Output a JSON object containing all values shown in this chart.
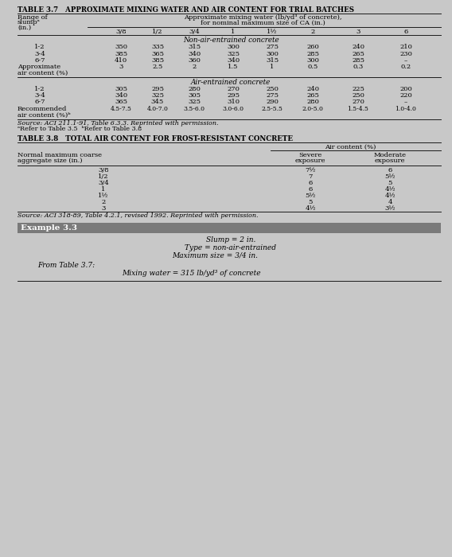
{
  "bg_color": "#c8c8c8",
  "table37_title": "TABLE 3.7   APPROXIMATE MIXING WATER AND AIR CONTENT FOR TRIAL BATCHES",
  "table37_header1": "Approximate mixing water (lb/yd³ of concrete),",
  "table37_header2": "for nominal maximum size of CA (in.)",
  "table37_col_left_lines": [
    "Range of",
    "slumpᵃ",
    "(in.)"
  ],
  "table37_col_headers": [
    "3/8",
    "1/2",
    "3/4",
    "1",
    "1½",
    "2",
    "3",
    "6"
  ],
  "table37_section1": "Non-air-entrained concrete",
  "non_air_rows": [
    [
      "1-2",
      "350",
      "335",
      "315",
      "300",
      "275",
      "260",
      "240",
      "210"
    ],
    [
      "3-4",
      "385",
      "365",
      "340",
      "325",
      "300",
      "285",
      "265",
      "230"
    ],
    [
      "6-7",
      "410",
      "385",
      "360",
      "340",
      "315",
      "300",
      "285",
      "–"
    ],
    [
      "Approximate\nair content (%)",
      "3",
      "2.5",
      "2",
      "1.5",
      "1",
      "0.5",
      "0.3",
      "0.2"
    ]
  ],
  "table37_section2": "Air-entrained concrete",
  "air_rows": [
    [
      "1-2",
      "305",
      "295",
      "280",
      "270",
      "250",
      "240",
      "225",
      "200"
    ],
    [
      "3-4",
      "340",
      "325",
      "305",
      "295",
      "275",
      "265",
      "250",
      "220"
    ],
    [
      "6-7",
      "365",
      "345",
      "325",
      "310",
      "290",
      "280",
      "270",
      "–"
    ],
    [
      "Recommended\nair content (%)ᵇ",
      "4.5-7.5",
      "4.0-7.0",
      "3.5-6.0",
      "3.0-6.0",
      "2.5-5.5",
      "2.0-5.0",
      "1.5-4.5",
      "1.0-4.0"
    ]
  ],
  "source37": "Source: ACI 211.1-91, Table 6.3.3. Reprinted with permission.",
  "footnote37a": "ᵃRefer to Table 3.5",
  "footnote37b": "  ᵇRefer to Table 3.8",
  "table38_title": "TABLE 3.8   TOTAL AIR CONTENT FOR FROST-RESISTANT CONCRETE",
  "table38_col_left": [
    "Normal maximum coarse",
    "aggregate size (in.)"
  ],
  "table38_header_center": "Air content (%)",
  "table38_col2": [
    "Severe",
    "exposure"
  ],
  "table38_col3": [
    "Moderate",
    "exposure"
  ],
  "table38_rows": [
    [
      "3/8",
      "7½",
      "6"
    ],
    [
      "1/2",
      "7",
      "5½"
    ],
    [
      "3/4",
      "6",
      "5"
    ],
    [
      "1",
      "6",
      "4½"
    ],
    [
      "1½",
      "5½",
      "4½"
    ],
    [
      "2",
      "5",
      "4"
    ],
    [
      "3",
      "4½",
      "3½"
    ]
  ],
  "source38": "Source: ACI 318-89, Table 4.2.1, revised 1992. Reprinted with permission.",
  "example_label": "Example 3.3",
  "example_line1": "Slump = 2 in.",
  "example_line2": "Type = non-air-entrained",
  "example_line3": "Maximum size = 3/4 in.",
  "example_from": "From Table 3.7:",
  "example_line4": "Mixing water = 315 lb/yd³ of concrete",
  "example_bar_color": "#7a7a7a",
  "example_text_color": "#ffffff"
}
